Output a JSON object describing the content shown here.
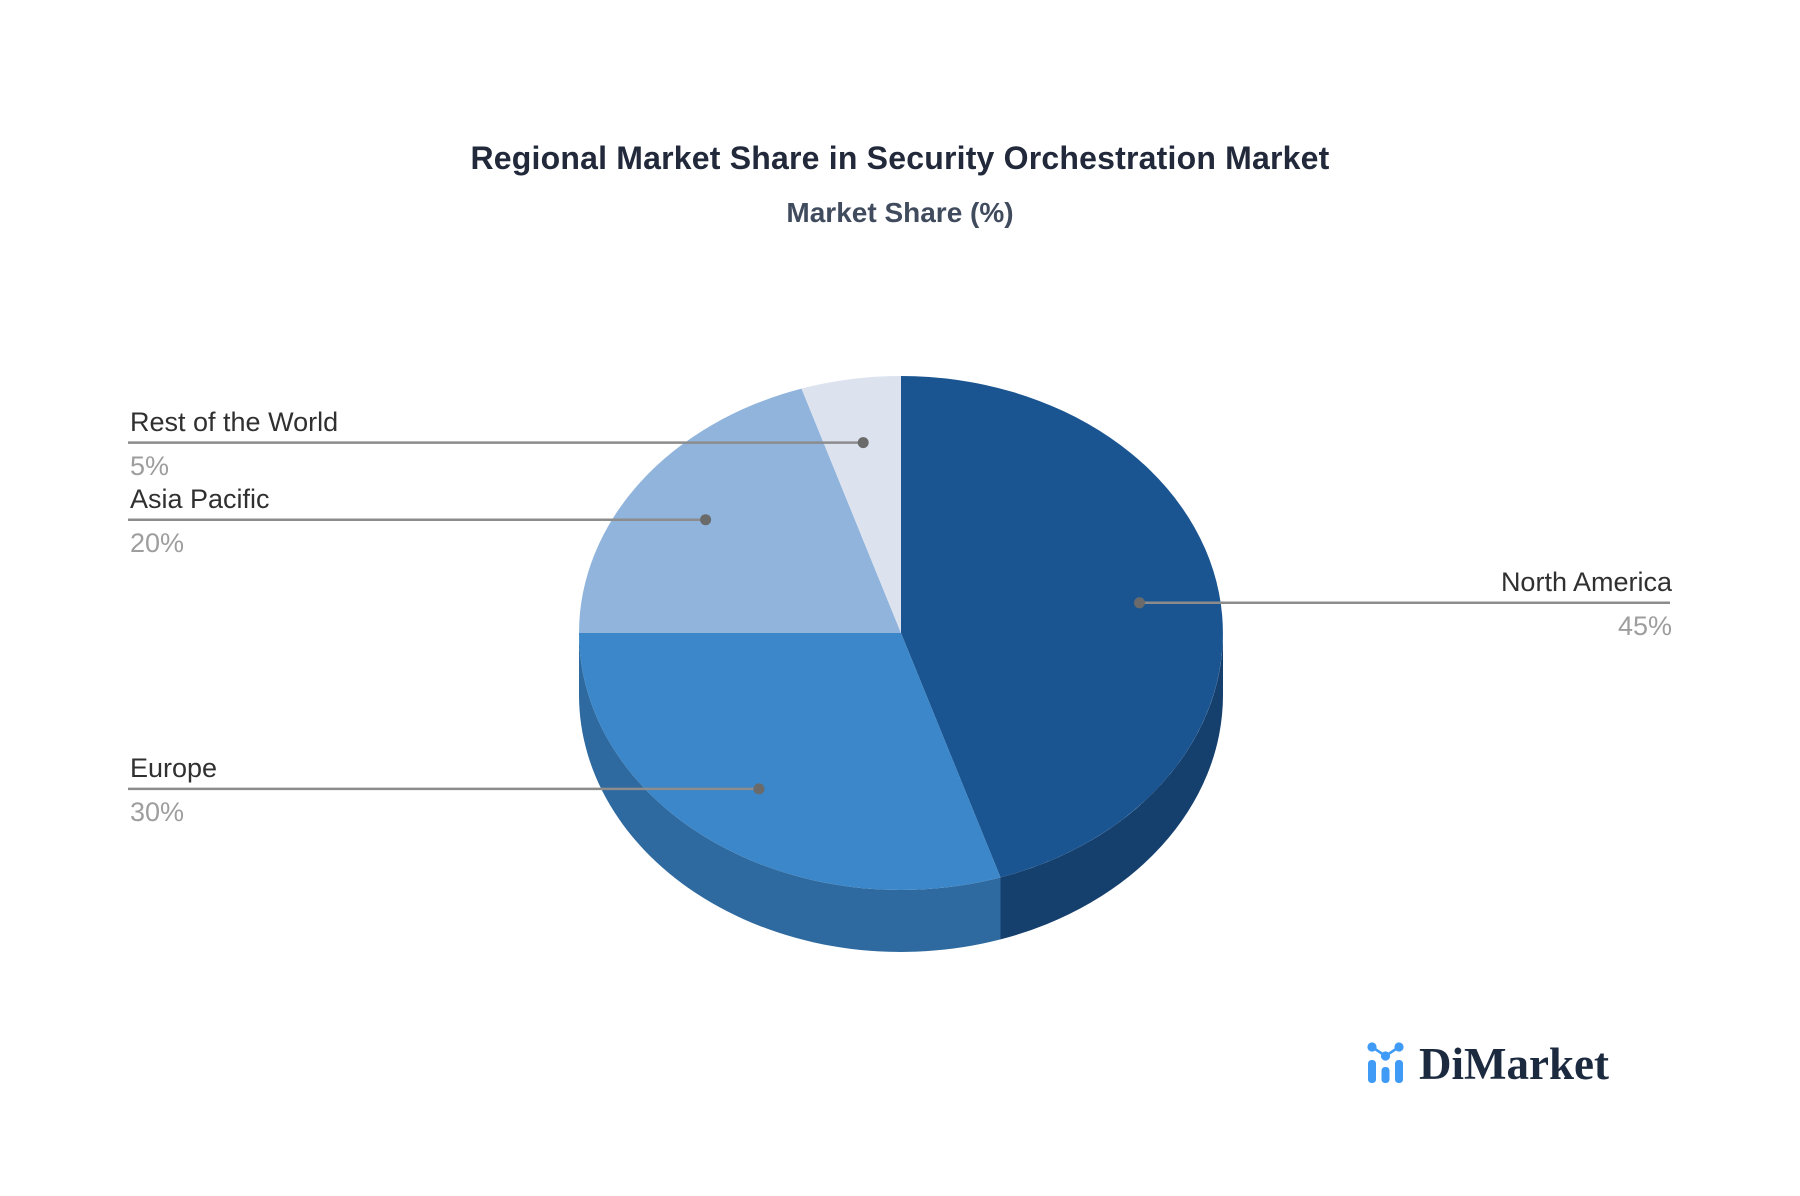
{
  "page": {
    "background": "#ffffff"
  },
  "chart_data": {
    "type": "pie",
    "title": "Regional Market Share in Security Orchestration Market",
    "subtitle": "Market Share (%)",
    "unit": "%",
    "direction": "clockwise",
    "start_angle_deg": 0,
    "effect": "3d",
    "legend_position": "none",
    "slices": [
      {
        "label": "North America",
        "value": 45,
        "color": "#1b5591",
        "side_color": "#153f6d",
        "label_side": "right"
      },
      {
        "label": "Europe",
        "value": 30,
        "color": "#3b87c9",
        "side_color": "#2e6aa0",
        "label_side": "left"
      },
      {
        "label": "Asia Pacific",
        "value": 20,
        "color": "#90b4db",
        "side_color": "#6e93ba",
        "label_side": "left"
      },
      {
        "label": "Rest of the World",
        "value": 5,
        "color": "#dce3ef",
        "side_color": "#b5bfcf",
        "label_side": "left"
      }
    ],
    "label_line_color": "#8c8c8c",
    "label_dot_color": "#6a6a6a",
    "label_name_color": "#303030",
    "label_value_color": "#9e9e9e",
    "title_color": "#21293a",
    "subtitle_color": "#404c5e"
  },
  "branding": {
    "logo_text": "DiMarket",
    "logo_text_color": "#1c2a40",
    "logo_icon": "bar-line-chart-icon",
    "logo_icon_color": "#3f9bf5"
  }
}
